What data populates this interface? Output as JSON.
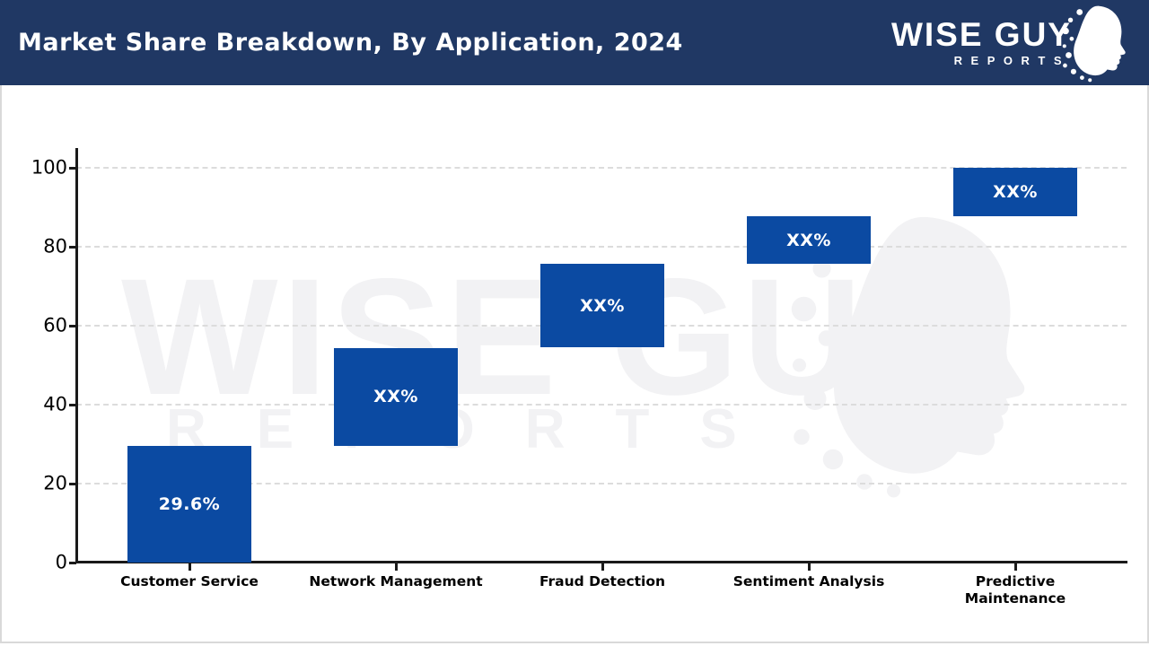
{
  "header": {
    "title": "Market Share Breakdown, By Application, 2024",
    "logo": {
      "word": "WISE GUY",
      "sub": "REPORTS"
    }
  },
  "watermark": {
    "line1": "WISE GUY",
    "line2": "REPORTS"
  },
  "colors": {
    "header_bg": "#203864",
    "bar": "#0b4aa2",
    "grid": "#dcdcdc",
    "axis": "#1a1a1a",
    "watermark": "#f2f2f4",
    "bar_label": "#ffffff"
  },
  "chart_data": {
    "type": "bar",
    "subtype": "waterfall",
    "title": "Market Share Breakdown, By Application, 2024",
    "xlabel": "",
    "ylabel": "",
    "ylim": [
      0,
      105
    ],
    "yticks": [
      0,
      20,
      40,
      60,
      80,
      100
    ],
    "grid": "horizontal-dashed",
    "legend": "none",
    "categories": [
      "Customer Service",
      "Network Management",
      "Fraud Detection",
      "Sentiment Analysis",
      "Predictive Maintenance"
    ],
    "segments": [
      {
        "category": "Customer Service",
        "start": 0,
        "end": 29.6,
        "label": "29.6%"
      },
      {
        "category": "Network Management",
        "start": 29.6,
        "end": 54.3,
        "label": "XX%"
      },
      {
        "category": "Fraud Detection",
        "start": 54.5,
        "end": 75.6,
        "label": "XX%"
      },
      {
        "category": "Sentiment Analysis",
        "start": 75.6,
        "end": 87.7,
        "label": "XX%"
      },
      {
        "category": "Predictive Maintenance",
        "start": 87.7,
        "end": 100,
        "label": "XX%"
      }
    ]
  }
}
